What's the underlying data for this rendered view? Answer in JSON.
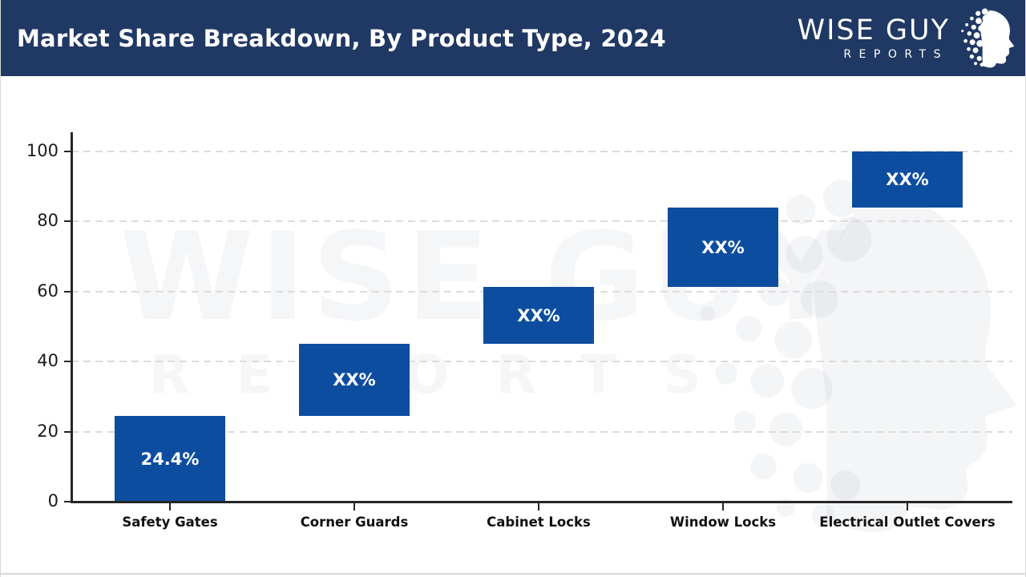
{
  "header": {
    "title": "Market Share Breakdown, By Product Type, 2024",
    "bg_color": "#203864",
    "logo": {
      "wordmark": "WISE GUY",
      "subtext": "REPORTS"
    }
  },
  "watermark": {
    "line1": "WISE GUY",
    "line2": "REPORTS"
  },
  "chart_data": {
    "type": "bar",
    "subtype": "floating-waterfall",
    "title": "Market Share Breakdown, By Product Type, 2024",
    "categories": [
      "Safety Gates",
      "Corner Guards",
      "Cabinet Locks",
      "Window Locks",
      "Electrical Outlet Covers"
    ],
    "series": [
      {
        "name": "Market share (%)",
        "segments": [
          {
            "start": 0,
            "end": 24.4,
            "label": "24.4%"
          },
          {
            "start": 24.4,
            "end": 45.0,
            "label": "XX%"
          },
          {
            "start": 45.0,
            "end": 61.3,
            "label": "XX%"
          },
          {
            "start": 61.3,
            "end": 84.0,
            "label": "XX%"
          },
          {
            "start": 84.0,
            "end": 100,
            "label": "XX%"
          }
        ]
      }
    ],
    "xlabel": "",
    "ylabel": "",
    "ylim": [
      0,
      100
    ],
    "y_ticks": [
      0,
      20,
      40,
      60,
      80,
      100
    ],
    "grid": "dashed-horizontal",
    "legend": "none",
    "bar_color": "#0d4da0",
    "bar_label_color": "#ffffff",
    "axis_color": "#262626"
  }
}
